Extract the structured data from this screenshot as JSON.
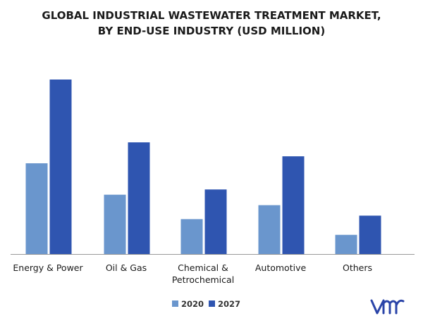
{
  "chart_data": {
    "type": "bar",
    "title": [
      "GLOBAL INDUSTRIAL WASTEWATER TREATMENT MARKET,",
      "BY END-USE INDUSTRY (USD MILLION)"
    ],
    "categories": [
      [
        "Energy & Power"
      ],
      [
        "Oil & Gas"
      ],
      [
        "Chemical &",
        "Petrochemical"
      ],
      [
        "Automotive"
      ],
      [
        "Others"
      ]
    ],
    "series": [
      {
        "name": "2020",
        "color": "#6a96cd",
        "values": [
          52,
          34,
          20,
          28,
          11
        ]
      },
      {
        "name": "2027",
        "color": "#2f55b0",
        "values": [
          100,
          64,
          37,
          56,
          22
        ]
      }
    ],
    "ylim": [
      0,
      100
    ],
    "grid": false,
    "legend": "bottom-center",
    "xlabel": "",
    "ylabel": ""
  },
  "colors": {
    "axis": "#999999",
    "text": "#1a1a1a",
    "logo": "#2a44a8"
  },
  "logo": {
    "icon": "mrfr-logo-icon",
    "text": "MRFR"
  }
}
